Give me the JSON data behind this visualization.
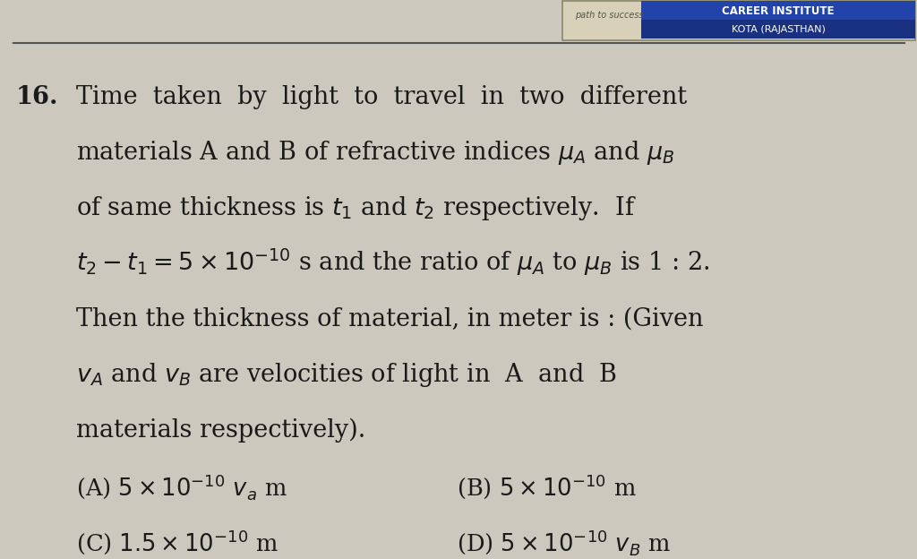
{
  "bg_color": "#cdc8be",
  "text_color": "#1a1a1a",
  "header_bar_color_top": "#2244aa",
  "header_bar_color_bot": "#1a3080",
  "header_text": "CAREER INSTITUTE",
  "header_subtext": "KOTA (RAJASTHAN)",
  "header_label": "path to success",
  "header_label_color": "#555544",
  "header_bg": "#d8d0b8"
}
